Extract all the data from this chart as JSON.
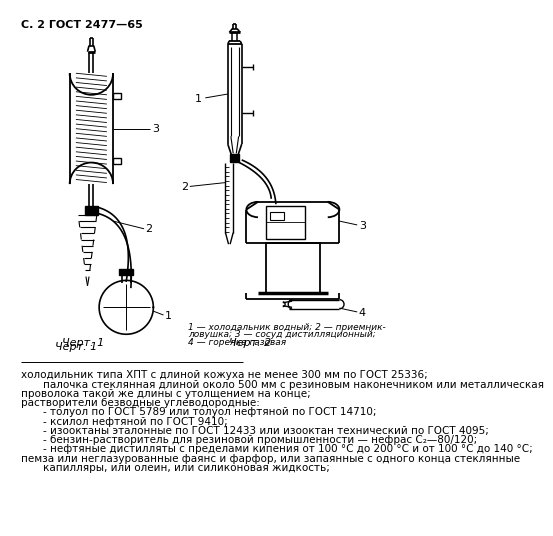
{
  "header": "С. 2 ГОСТ 2477—65",
  "chert1_label": "Черт. 1",
  "chert2_label": "Черт. 2",
  "caption2_line1": "1 — холодальник водный; 2 — приемник-",
  "caption2_line2": "ловушка; 3 — сосуд дистилляционный;",
  "caption2_line3": "4 — горелка газовая",
  "text_body": [
    "холодильник типа ХПТ с длиной кожуха не менее 300 мм по ГОСТ 25336;",
    "палочка стеклянная длиной около 500 мм с резиновым наконечником или металлическая",
    "проволока такой же длины с утолщением на конце;",
    "растворители безводные углеводородные:",
    "- толуол по ГОСТ 5789 или толуол нефтяной по ГОСТ 14710;",
    "- ксилол нефтяной по ГОСТ 9410;",
    "- изооктаны эталонные по ГОСТ 12433 или изооктан технический по ГОСТ 4095;",
    "- бензин-растворитель для резиновой промышленности — нефрас С₂—80/120;",
    "- нефтяные дистилляты с пределами кипения от 100 °C до 200 °C и от 100 °C до 140 °C;",
    "пемза или неглазурованные фаянс и фарфор, или запаянные с одного конца стеклянные",
    "капилляры, или олеин, или силиконовая жидкость;"
  ],
  "bg_color": "#ffffff",
  "line_color": "#000000",
  "text_color": "#000000"
}
